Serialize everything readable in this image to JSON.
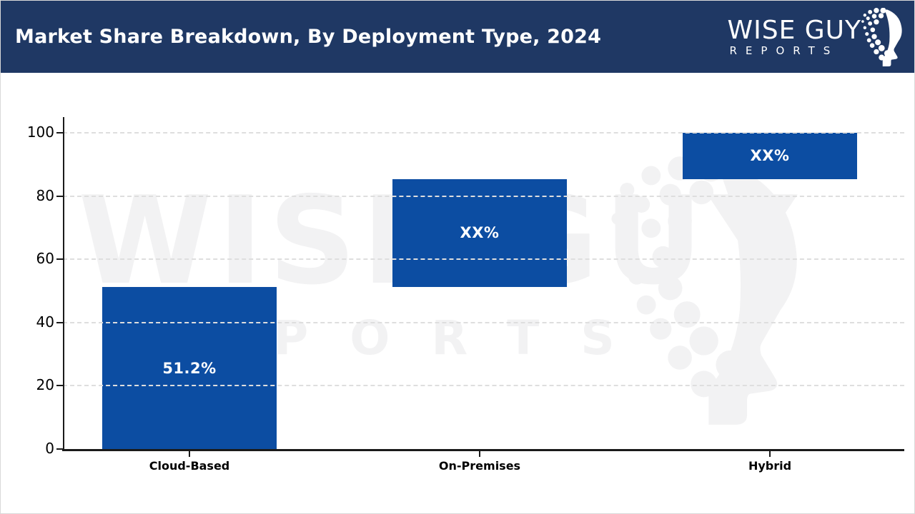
{
  "header": {
    "title": "Market Share Breakdown, By Deployment Type, 2024",
    "logo": {
      "line1": "WISE GUY",
      "line2": "REPORTS",
      "icon": "dotted-head-profile-icon"
    }
  },
  "watermark": {
    "line1": "WISE GUY",
    "line2": "REPORTS",
    "icon": "dotted-head-profile-icon"
  },
  "colors": {
    "header_bg": "#1f3864",
    "bar": "#0c4da2",
    "gridline": "#dedede",
    "axis": "#1a1a1a",
    "bar_label": "#ffffff",
    "watermark": "#f2f2f3"
  },
  "chart_data": {
    "type": "bar",
    "subtype": "floating-waterfall",
    "title": "Market Share Breakdown, By Deployment Type, 2024",
    "xlabel": "",
    "ylabel": "",
    "categories": [
      "Cloud-Based",
      "On-Premises",
      "Hybrid"
    ],
    "segments": [
      {
        "category": "Cloud-Based",
        "from": 0,
        "to": 51.2,
        "label": "51.2%"
      },
      {
        "category": "On-Premises",
        "from": 51.2,
        "to": 85.4,
        "label": "XX%"
      },
      {
        "category": "Hybrid",
        "from": 85.4,
        "to": 100.0,
        "label": "XX%"
      }
    ],
    "yticks": [
      0,
      20,
      40,
      60,
      80,
      100
    ],
    "ylim": [
      0,
      105
    ],
    "grid": "horizontal-dashed, drawn above bars",
    "legend": "none"
  }
}
